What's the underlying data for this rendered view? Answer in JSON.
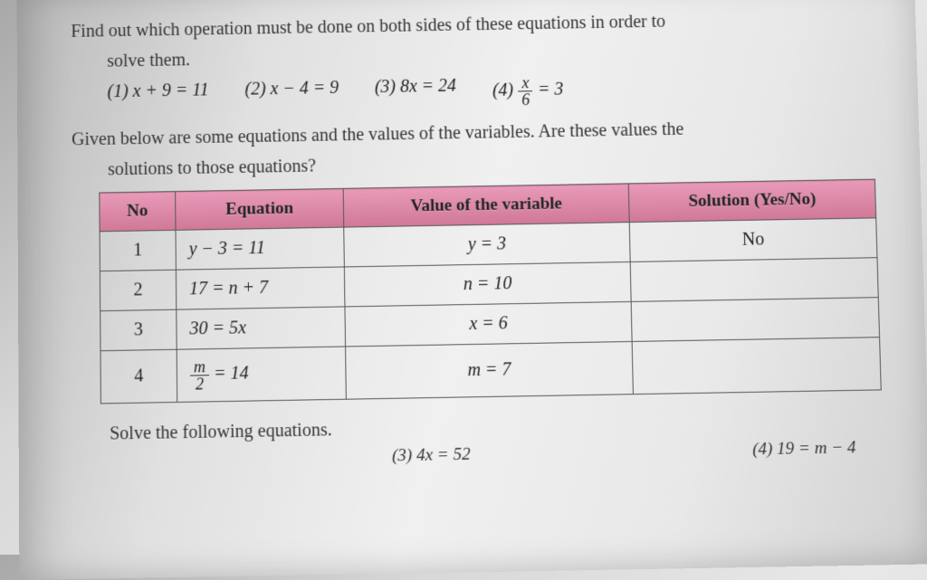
{
  "q3": {
    "prompt_line1": "Find out which operation must be done on both sides of these equations in order to",
    "prompt_line2": "solve them.",
    "parts": {
      "p1": "(1) x + 9 = 11",
      "p2": "(2) x − 4 = 9",
      "p3": "(3) 8x = 24",
      "p4_prefix": "(4) ",
      "p4_num": "x",
      "p4_den": "6",
      "p4_suffix": " = 3"
    }
  },
  "q4": {
    "prompt_line1": "Given below are some equations and the values of the variables. Are these values the",
    "prompt_line2": "solutions to those equations?"
  },
  "table": {
    "headers": {
      "no": "No",
      "eq": "Equation",
      "val": "Value of the variable",
      "sol": "Solution (Yes/No)"
    },
    "rows": [
      {
        "no": "1",
        "eq": "y − 3 = 11",
        "val": "y = 3",
        "sol": "No"
      },
      {
        "no": "2",
        "eq": "17 = n + 7",
        "val": "n = 10",
        "sol": ""
      },
      {
        "no": "3",
        "eq": "30 = 5x",
        "val": "x = 6",
        "sol": ""
      }
    ],
    "row4": {
      "no": "4",
      "eq_num": "m",
      "eq_den": "2",
      "eq_suffix": " = 14",
      "val": "m = 7",
      "sol": ""
    }
  },
  "q5": {
    "prompt": "Solve the following equations.",
    "p3": "(3) 4x = 52",
    "p4": "(4) 19 = m − 4"
  }
}
